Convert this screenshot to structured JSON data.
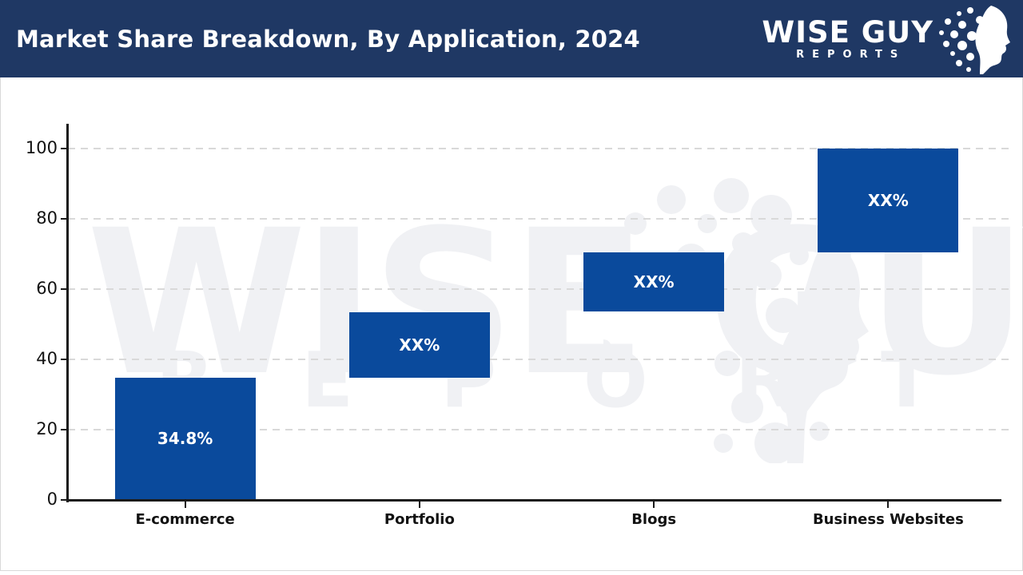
{
  "header": {
    "title": "Market Share Breakdown, By Application, 2024",
    "bg_color": "#1f3864",
    "logo": {
      "line1": "WISE GUY",
      "line2": "REPORTS"
    }
  },
  "watermark": {
    "line1": "WISE GUY",
    "line2": "R E P O R T S"
  },
  "chart_data": {
    "type": "bar",
    "subtype": "waterfall",
    "title": "Market Share Breakdown, By Application, 2024",
    "categories": [
      "E-commerce",
      "Portfolio",
      "Blogs",
      "Business Websites"
    ],
    "segments": [
      {
        "category": "E-commerce",
        "start": 0,
        "end": 34.8,
        "label": "34.8%"
      },
      {
        "category": "Portfolio",
        "start": 34.8,
        "end": 53.5,
        "label": "XX%"
      },
      {
        "category": "Blogs",
        "start": 53.5,
        "end": 70.5,
        "label": "XX%"
      },
      {
        "category": "Business Websites",
        "start": 70.5,
        "end": 100,
        "label": "XX%"
      }
    ],
    "y_ticks": [
      0,
      20,
      40,
      60,
      80,
      100
    ],
    "ylim": [
      0,
      107
    ],
    "xlabel": "",
    "ylabel": "",
    "legend": "none",
    "grid": "horizontal-dashed",
    "bar_color": "#0a4a9c",
    "bar_label_color": "#ffffff",
    "grid_color": "#d9d9d9",
    "axis_color": "#1a1a1a"
  }
}
